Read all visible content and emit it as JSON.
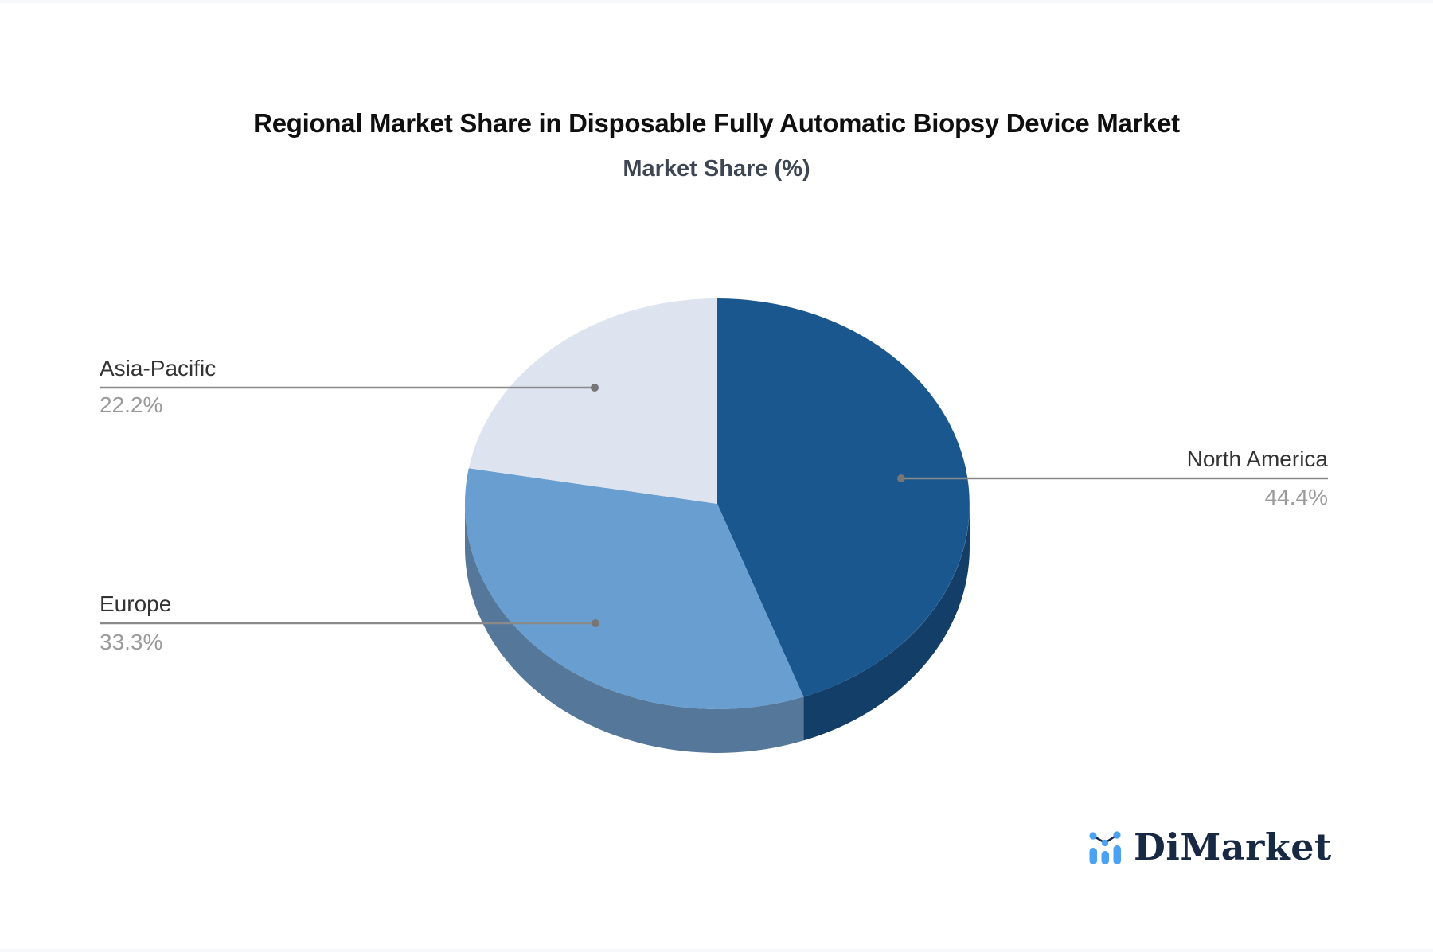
{
  "header": {
    "title": "Regional Market Share in Disposable Fully Automatic Biopsy Device Market",
    "subtitle": "Market Share (%)"
  },
  "chart_data": {
    "type": "pie",
    "style": "3d-pie",
    "title": "Regional Market Share in Disposable Fully Automatic Biopsy Device Market",
    "subtitle": "Market Share (%)",
    "unit": "%",
    "labels": [
      "North America",
      "Europe",
      "Asia-Pacific"
    ],
    "values": [
      44.4,
      33.3,
      22.2
    ],
    "value_labels": [
      "44.4%",
      "33.3%",
      "22.2%"
    ],
    "colors": [
      "#1A578E",
      "#689ED0",
      "#DEE4EF"
    ],
    "side_colors": [
      "#123E68",
      "#54779A",
      "#B9C4D6"
    ],
    "start_angle_deg": 0,
    "direction": "clockwise",
    "legend_position": "callout-labels",
    "leader_line_color": "#8A8A8A",
    "leader_dot_color": "#767676"
  },
  "callouts": {
    "north_america": {
      "label": "North America",
      "value": "44.4%"
    },
    "europe": {
      "label": "Europe",
      "value": "33.3%"
    },
    "asia_pacific": {
      "label": "Asia-Pacific",
      "value": "22.2%"
    }
  },
  "branding": {
    "logo_text": "DiMarket",
    "logo_icon": "bar-chart-trend-icon"
  }
}
